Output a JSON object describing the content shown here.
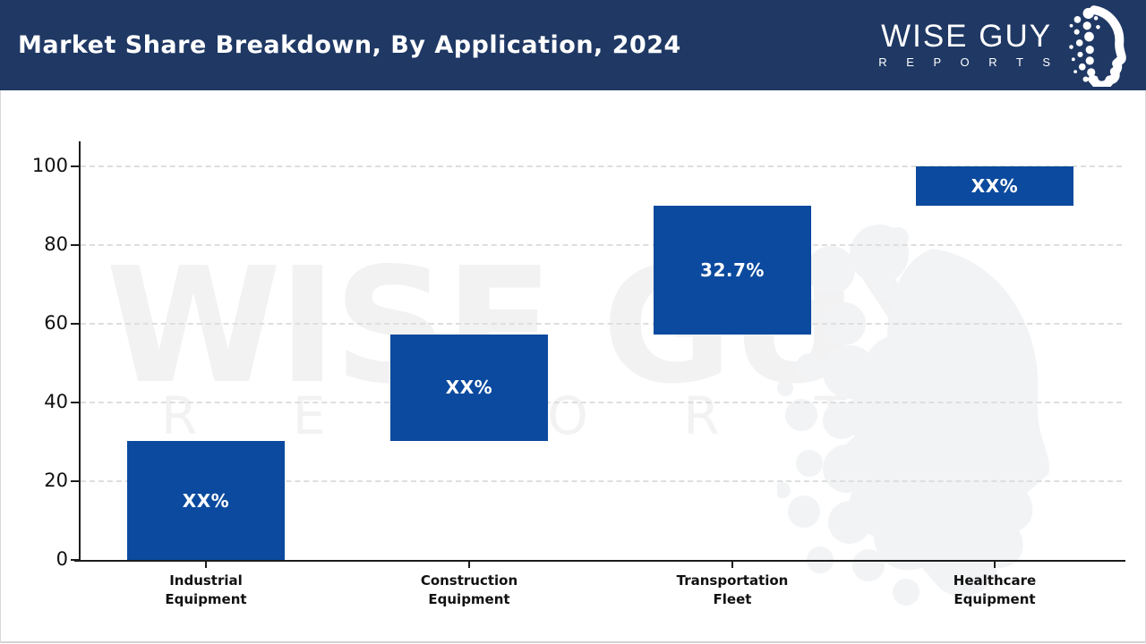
{
  "header": {
    "title": "Market Share Breakdown, By Application, 2024",
    "background_color": "#1f3864",
    "logo": {
      "primary": "WISE GUY",
      "secondary": "R E P O R T S"
    }
  },
  "watermark": {
    "line1": "WISE GUY",
    "line2": "R E P O R T S"
  },
  "chart_data": {
    "type": "bar",
    "variant": "waterfall",
    "title": "Market Share Breakdown, By Application, 2024",
    "categories": [
      "Industrial Equipment",
      "Construction Equipment",
      "Transportation Fleet",
      "Healthcare Equipment"
    ],
    "category_lines": [
      [
        "Industrial",
        "Equipment"
      ],
      [
        "Construction",
        "Equipment"
      ],
      [
        "Transportation",
        "Fleet"
      ],
      [
        "Healthcare",
        "Equipment"
      ]
    ],
    "segments": [
      {
        "start": 0,
        "end": 30.2,
        "value": 30.2,
        "value_label": "XX%"
      },
      {
        "start": 30.2,
        "end": 57.3,
        "value": 27.1,
        "value_label": "XX%"
      },
      {
        "start": 57.3,
        "end": 90.0,
        "value": 32.7,
        "value_label": "32.7%"
      },
      {
        "start": 90.0,
        "end": 100.0,
        "value": 10.0,
        "value_label": "XX%"
      }
    ],
    "xlabel": "",
    "ylabel": "",
    "ylim": [
      0,
      105
    ],
    "yticks": [
      0,
      20,
      40,
      60,
      80,
      100
    ],
    "grid": "horizontal-dashed",
    "legend": "none",
    "bar_color": "#0b4a9e",
    "bar_label_color": "#ffffff",
    "axis_color": "#1c1c1c",
    "gridline_color": "#dedede"
  }
}
